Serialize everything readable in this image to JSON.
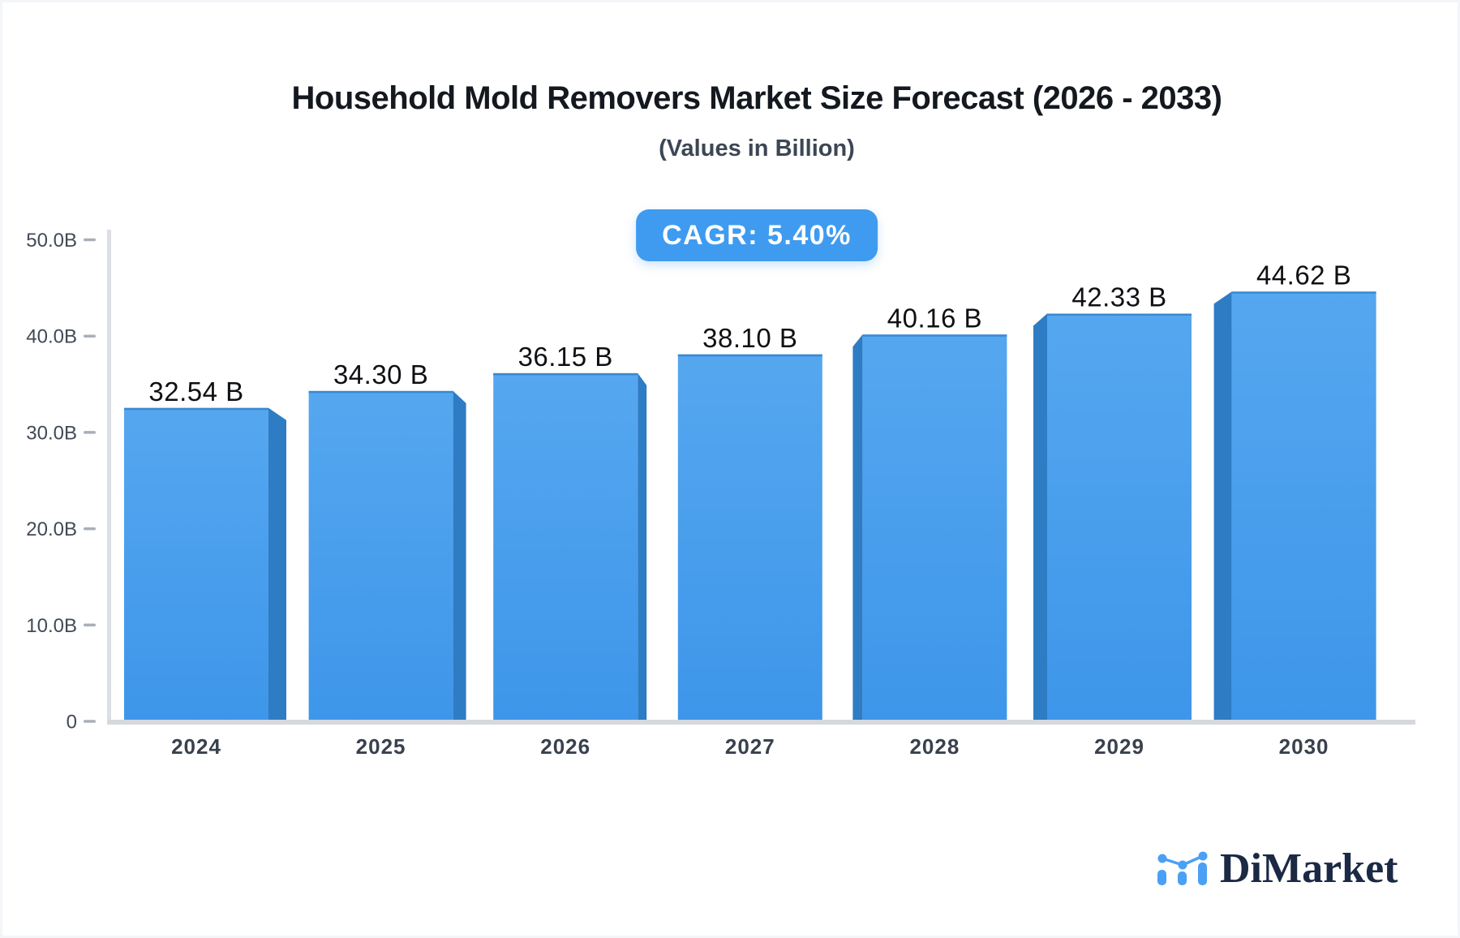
{
  "chart_data": {
    "type": "bar",
    "title": "Household Mold Removers Market Size Forecast (2026 - 2033)",
    "subtitle": "(Values in Billion)",
    "cagr_badge": "CAGR: 5.40%",
    "categories": [
      "2024",
      "2025",
      "2026",
      "2027",
      "2028",
      "2029",
      "2030"
    ],
    "values": [
      32.54,
      34.3,
      36.15,
      38.1,
      40.16,
      42.33,
      44.62
    ],
    "value_labels": [
      "32.54 B",
      "34.30 B",
      "36.15 B",
      "38.10 B",
      "40.16 B",
      "42.33 B",
      "44.62 B"
    ],
    "xlabel": "",
    "ylabel": "",
    "ylim": [
      0,
      50
    ],
    "y_ticks": [
      {
        "value": 50,
        "label": "50.0B"
      },
      {
        "value": 40,
        "label": "40.0B"
      },
      {
        "value": 30,
        "label": "30.0B"
      },
      {
        "value": 20,
        "label": "20.0B"
      },
      {
        "value": 10,
        "label": "10.0B"
      },
      {
        "value": 0,
        "label": "0"
      }
    ],
    "grid": false,
    "legend": null,
    "bar_style": "pseudo-3d, center perspective (side face faces outward from middle bar)",
    "colors": {
      "bar_face_top": "#55a7ef",
      "bar_face_bottom": "#3e96ea",
      "bar_top_edge": "#3a88d1",
      "bar_side": "#2e7cc3",
      "badge_background": "#3f9bf0",
      "badge_text": "#ffffff",
      "axis_line": "#dcdfe3",
      "baseline": "#d5d8dd",
      "tick_dash": "#a9afb8",
      "tick_text": "#414a57",
      "category_text": "#39414e",
      "value_text": "#0e1013",
      "title_text": "#14181f",
      "subtitle_text": "#3c4654"
    }
  },
  "branding": {
    "logo_text": "DiMarket",
    "logo_icon": "bar-chart-trend-icon",
    "logo_icon_color": "#4aa0f5",
    "logo_text_color": "#1b2944"
  }
}
